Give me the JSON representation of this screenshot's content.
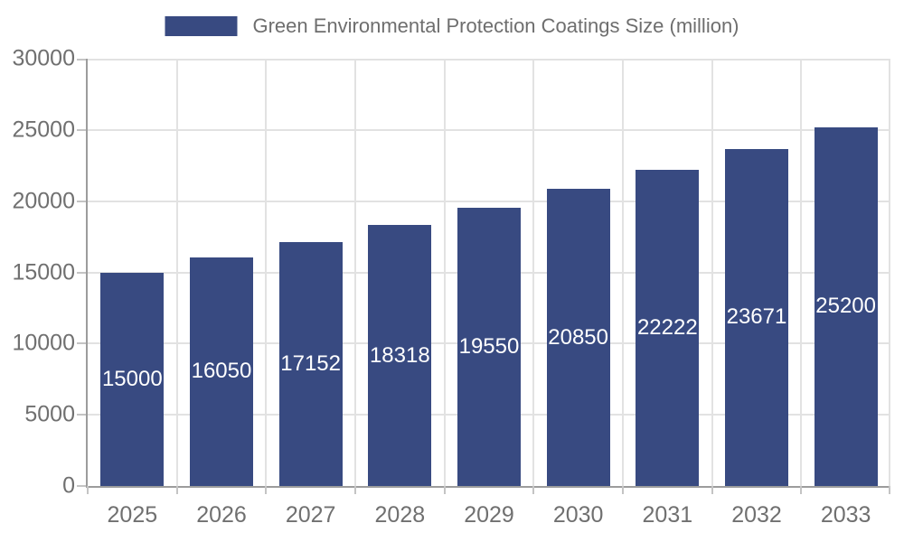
{
  "chart_data": {
    "type": "bar",
    "title": "Green Environmental Protection Coatings Size (million)",
    "legend_position": "top",
    "categories": [
      "2025",
      "2026",
      "2027",
      "2028",
      "2029",
      "2030",
      "2031",
      "2032",
      "2033"
    ],
    "series": [
      {
        "name": "Green Environmental Protection Coatings Size (million)",
        "values": [
          15000,
          16050,
          17152,
          18318,
          19550,
          20850,
          22222,
          23671,
          25200
        ]
      }
    ],
    "xlabel": "",
    "ylabel": "",
    "ylim": [
      0,
      30000
    ],
    "yticks": [
      0,
      5000,
      10000,
      15000,
      20000,
      25000,
      30000
    ],
    "grid": true,
    "bar_value_labels_inside": true,
    "colors": {
      "bar": "#384A81",
      "bar_value_label": "#FFFFFF",
      "axis_text": "#707070",
      "legend_text": "#6E6E6E",
      "gridline": "#E2E2E2",
      "axis_line": "#9C9C9C",
      "tick": "#C4C4C4"
    }
  }
}
